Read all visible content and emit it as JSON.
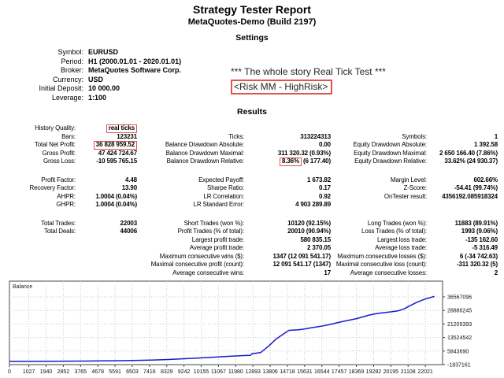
{
  "header": {
    "title": "Strategy Tester Report",
    "server": "MetaQuotes-Demo (Build 2197)",
    "settings_heading": "Settings",
    "results_heading": "Results"
  },
  "colors": {
    "highlight_box": "#e0534e",
    "curve": "#1a1acc"
  },
  "settings": {
    "rows": [
      {
        "label": "Symbol:",
        "value": "EURUSD"
      },
      {
        "label": "Period:",
        "value": "H1 (2000.01.01 - 2020.01.01)"
      },
      {
        "label": "Broker:",
        "value": "MetaQuotes Software Corp."
      },
      {
        "label": "Currency:",
        "value": "USD"
      },
      {
        "label": "Initial Deposit:",
        "value": "10 000.00"
      },
      {
        "label": "Leverage:",
        "value": "1:100"
      }
    ]
  },
  "annotation": {
    "line1": "*** The whole story Real Tick Test ***",
    "line2": "<Risk MM - HighRisk>"
  },
  "results": {
    "groups": [
      {
        "rows": [
          {
            "l1": "History Quality:",
            "v1": [
              {
                "t": "real ticks",
                "box": true
              }
            ]
          },
          {
            "l1": "Bars:",
            "v1": "123231",
            "l2": "Ticks:",
            "v2": "313224313",
            "l3": "Symbols:",
            "v3": "1"
          },
          {
            "l1": "Total Net Profit:",
            "v1": [
              {
                "t": "36 828 959.52",
                "box": true
              }
            ],
            "l2": "Balance Drawdown Absolute:",
            "v2": "0.00",
            "l3": "Equity Drawdown Absolute:",
            "v3": "1 392.58"
          },
          {
            "l1": "Gross Profit:",
            "v1": "47 424 724.67",
            "l2": "Balance Drawdown Maximal:",
            "v2": "311 320.32 (0.93%)",
            "l3": "Equity Drawdown Maximal:",
            "v3": "2 650 166.40 (7.86%)"
          },
          {
            "l1": "Gross Loss:",
            "v1": "-10 595 765.15",
            "l2": "Balance Drawdown Relative:",
            "v2": [
              {
                "t": "8.36%",
                "box": true
              },
              {
                "t": " (6 177.40)"
              }
            ],
            "l3": "Equity Drawdown Relative:",
            "v3": "33.62% (24 930.37)"
          }
        ]
      },
      {
        "rows": [
          {
            "l1": "Profit Factor:",
            "v1": "4.48",
            "l2": "Expected Payoff:",
            "v2": "1 673.82",
            "l3": "Margin Level:",
            "v3": "602.66%"
          },
          {
            "l1": "Recovery Factor:",
            "v1": "13.90",
            "l2": "Sharpe Ratio:",
            "v2": "0.17",
            "l3": "Z-Score:",
            "v3": "-54.41 (99.74%)"
          },
          {
            "l1": "AHPR:",
            "v1": "1.0004 (0.04%)",
            "l2": "LR Correlation:",
            "v2": "0.92",
            "l3": "OnTester result:",
            "v3": "4356192.085918324"
          },
          {
            "l1": "GHPR:",
            "v1": "1.0004 (0.04%)",
            "l2": "LR Standard Error:",
            "v2": "4 903 289.89"
          }
        ]
      },
      {
        "rows": [
          {
            "l1": "Total Trades:",
            "v1": "22003",
            "l2": "Short Trades (won %):",
            "v2": "10120 (92.15%)",
            "l3": "Long Trades (won %):",
            "v3": "11883 (89.91%)"
          },
          {
            "l1": "Total Deals:",
            "v1": "44006",
            "l2": "Profit Trades (% of total):",
            "v2": "20010 (90.94%)",
            "l3": "Loss Trades (% of total):",
            "v3": "1993 (9.06%)"
          },
          {
            "l2": "Largest profit trade:",
            "v2": "580 835.15",
            "l3": "Largest loss trade:",
            "v3": "-135 162.60"
          },
          {
            "l2": "Average profit trade:",
            "v2": "2 370.05",
            "l3": "Average loss trade:",
            "v3": "-5 316.49"
          },
          {
            "l2": "Maximum consecutive wins ($):",
            "v2": "1347 (12 091 541.17)",
            "l3": "Maximum consecutive losses ($):",
            "v3": "6 (-34 742.63)"
          },
          {
            "l2": "Maximal consecutive profit (count):",
            "v2": "12 091 541.17 (1347)",
            "l3": "Maximal consecutive loss (count):",
            "v3": "-311 320.32 (5)"
          },
          {
            "l2": "Average consecutive wins:",
            "v2": "17",
            "l3": "Average consecutive losses:",
            "v3": "2"
          }
        ]
      }
    ]
  },
  "chart_data": {
    "type": "line",
    "title": "Balance",
    "xlabel": "",
    "ylabel": "",
    "grid": true,
    "xlim": [
      0,
      22934
    ],
    "ylim": [
      -1837161,
      45500000
    ],
    "x_ticks": [
      0,
      1027,
      1940,
      2852,
      3765,
      4678,
      5591,
      6503,
      7416,
      8329,
      9242,
      10155,
      11067,
      11980,
      12893,
      13806,
      14718,
      15631,
      16544,
      17457,
      18369,
      19282,
      20195,
      21108,
      22021
    ],
    "y_ticks": [
      -1837161,
      5843690,
      13524542,
      21205393,
      28886245,
      36567096
    ],
    "series": [
      {
        "name": "Balance",
        "color": "#1a1acc",
        "x": [
          0,
          2000,
          4000,
          6000,
          7500,
          8300,
          9500,
          10500,
          11500,
          12400,
          12750,
          12850,
          13000,
          13300,
          13700,
          14100,
          14500,
          14800,
          15300,
          15600,
          16000,
          16500,
          17000,
          17500,
          18000,
          18400,
          19000,
          19400,
          19800,
          20200,
          20600,
          20900,
          21200,
          21600,
          22000,
          22500
        ],
        "y": [
          10000,
          60000,
          160000,
          400000,
          700000,
          1000000,
          1600000,
          2200000,
          2800000,
          3300000,
          3400000,
          4400000,
          4600000,
          5000000,
          8500000,
          12500000,
          15500000,
          17600000,
          17900000,
          18300000,
          19100000,
          19900000,
          21000000,
          22300000,
          23400000,
          24300000,
          26100000,
          27000000,
          27600000,
          28100000,
          28700000,
          29800000,
          31500000,
          33600000,
          35300000,
          36840000
        ]
      }
    ]
  }
}
